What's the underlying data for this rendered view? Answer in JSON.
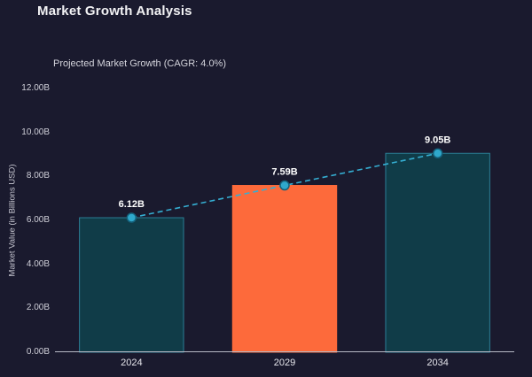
{
  "header": {
    "title": "Market Growth Analysis"
  },
  "colors": {
    "background": "#1a1a2e",
    "bar_teal": "#103c48",
    "bar_teal_border": "#2c7f96",
    "bar_orange": "#fd6a3b",
    "trend_line": "#35aed2",
    "marker_fill": "#2fa8cc",
    "marker_border": "#15607a",
    "axis_line": "#b7bac6"
  },
  "chart_data": {
    "type": "bar",
    "title": "Projected Market Growth (CAGR: 4.0%)",
    "categories": [
      "2024",
      "2029",
      "2034"
    ],
    "values": [
      6.12,
      7.59,
      9.05
    ],
    "value_labels": [
      "6.12B",
      "7.59B",
      "9.05B"
    ],
    "series": [
      {
        "name": "Market Value",
        "values": [
          6.12,
          7.59,
          9.05
        ]
      }
    ],
    "bar_colors": [
      "#103c48",
      "#fd6a3b",
      "#103c48"
    ],
    "bar_border_colors": [
      "#2c7f96",
      "#fd6a3b",
      "#2c7f96"
    ],
    "overlay_line": {
      "style": "dashed",
      "color": "#35aed2",
      "marker": "circle",
      "values": [
        6.12,
        7.59,
        9.05
      ]
    },
    "xlabel": "",
    "ylabel": "Market Value (in Billions USD)",
    "ylim": [
      0,
      12
    ],
    "ytick_step": 2,
    "ytick_labels": [
      "0.00B",
      "2.00B",
      "4.00B",
      "6.00B",
      "8.00B",
      "10.00B",
      "12.00B"
    ],
    "grid": false,
    "legend_position": "none"
  }
}
